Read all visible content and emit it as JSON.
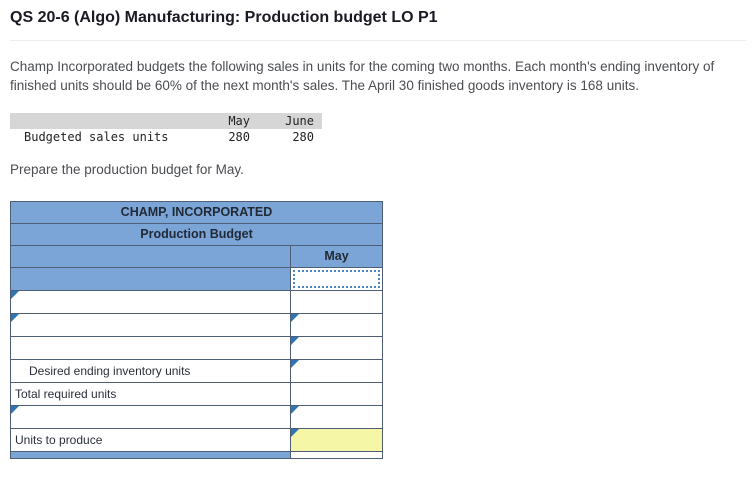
{
  "page": {
    "title": "QS 20-6 (Algo) Manufacturing: Production budget LO P1",
    "intro": "Champ Incorporated budgets the following sales in units for the coming two months. Each month's ending inventory of finished units should be 60% of the next month's sales. The April 30 finished goods inventory is 168 units.",
    "instruction": "Prepare the production budget for May."
  },
  "sales_table": {
    "col_headers": [
      "May",
      "June"
    ],
    "row_label": "Budgeted sales units",
    "values": [
      "280",
      "280"
    ]
  },
  "worksheet": {
    "title": "CHAMP, INCORPORATED",
    "subtitle": "Production Budget",
    "month_header": "May",
    "rows": [
      {
        "label": "",
        "value": "",
        "label_blue": true,
        "active": true
      },
      {
        "label": "",
        "value": "",
        "label_triangle": true
      },
      {
        "label": "",
        "value": "",
        "label_triangle": true,
        "value_triangle": true
      },
      {
        "label": "",
        "value": "",
        "value_triangle": true
      },
      {
        "label": "Desired ending inventory units",
        "value": "",
        "indent": true,
        "value_triangle": true
      },
      {
        "label": "Total required units",
        "value": ""
      },
      {
        "label": "",
        "value": "",
        "label_triangle": true,
        "value_triangle": true
      },
      {
        "label": "Units to produce",
        "value": "",
        "value_yellow": true,
        "value_triangle": true
      }
    ]
  },
  "colors": {
    "header_blue": "#7ba5d7",
    "cell_yellow": "#f6f7a6",
    "triangle_blue": "#2e75b6",
    "active_outline": "#4a86c8",
    "border": "#4e5f75"
  }
}
